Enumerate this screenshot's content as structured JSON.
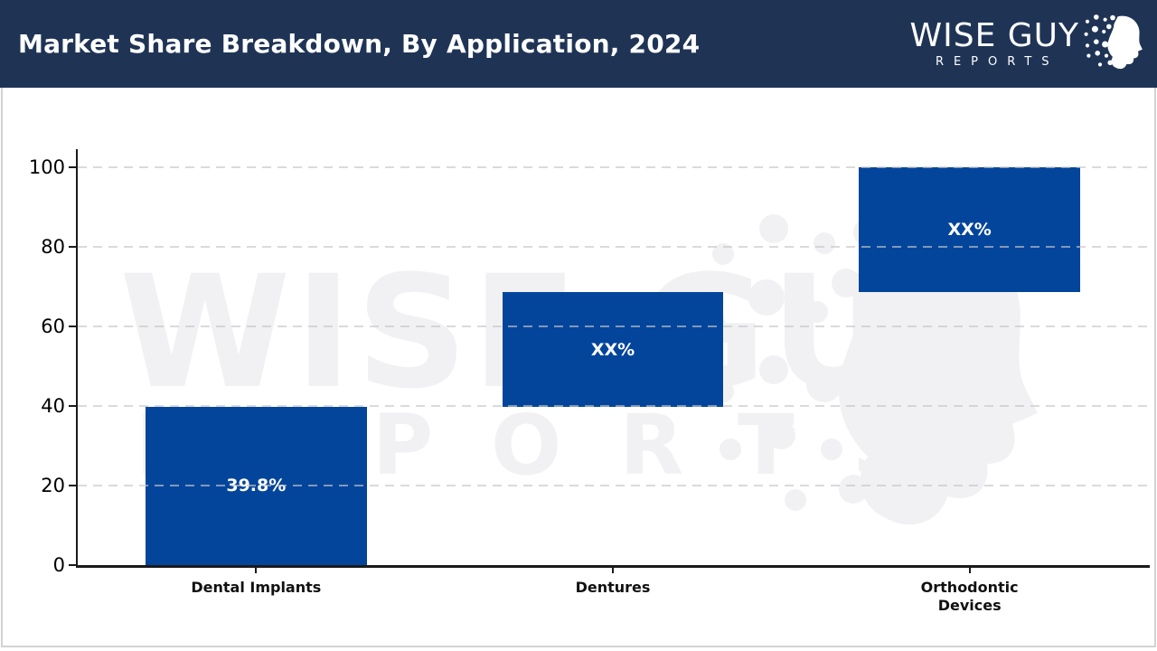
{
  "header": {
    "title": "Market Share Breakdown, By Application, 2024",
    "logo": {
      "line1": "WISE GUY",
      "line2": "REPORTS"
    }
  },
  "watermark": {
    "line1": "WISE GUY",
    "line2": "REPORTS"
  },
  "chart_data": {
    "type": "bar",
    "subtype": "floating-segment-waterfall",
    "title": "Market Share Breakdown, By Application, 2024",
    "categories": [
      "Dental Implants",
      "Dentures",
      "Orthodontic Devices"
    ],
    "series": [
      {
        "name": "Market share (%)",
        "segments": [
          {
            "category": "Dental Implants",
            "start": 0,
            "end": 39.8,
            "label": "39.8%"
          },
          {
            "category": "Dentures",
            "start": 39.8,
            "end": 68.6,
            "label": "XX%"
          },
          {
            "category": "Orthodontic Devices",
            "start": 68.6,
            "end": 100,
            "label": "XX%"
          }
        ]
      }
    ],
    "ylim": [
      0,
      100
    ],
    "yticks": [
      0,
      20,
      40,
      60,
      80,
      100
    ],
    "grid": "horizontal-dashed",
    "legend": "none",
    "colors": {
      "bar": "#04459c",
      "bar_label": "#ffffff",
      "grid": "#d8d8d8",
      "axis": "#1a1a1a",
      "header_bg": "#1f3455",
      "watermark": "#f1f1f4"
    }
  }
}
